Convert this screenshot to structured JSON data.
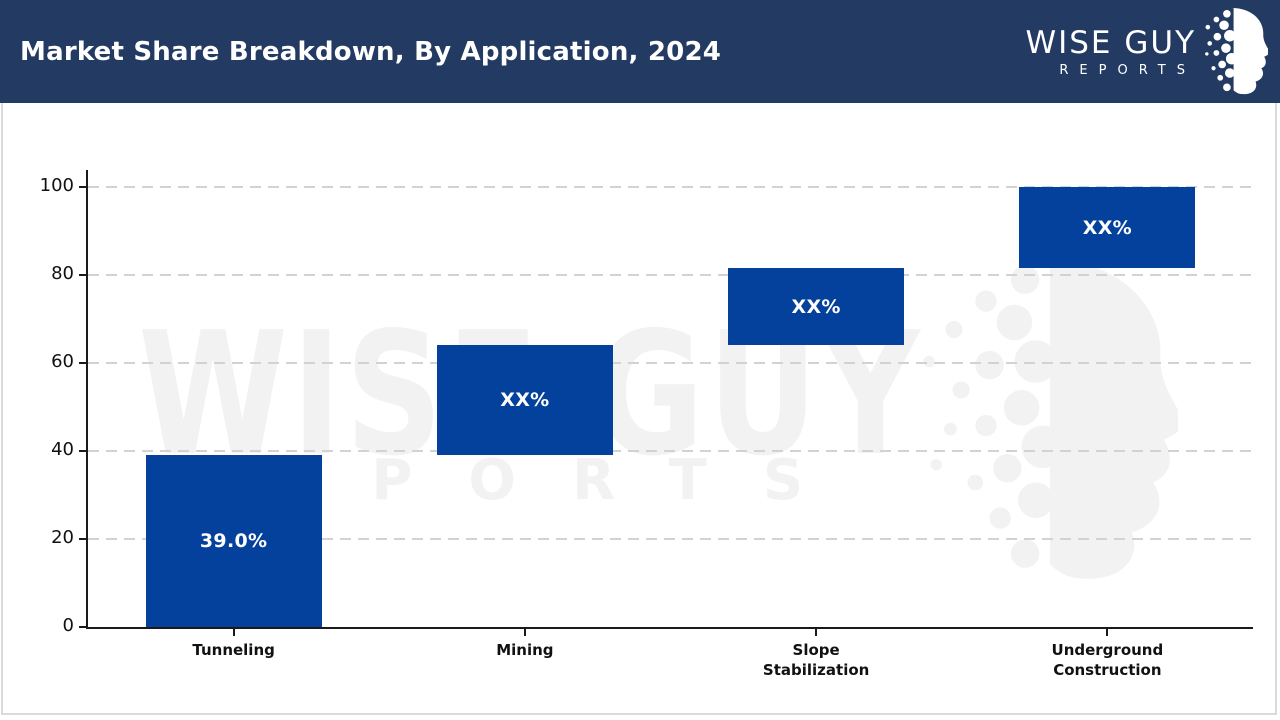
{
  "header": {
    "title": "Market Share Breakdown, By Application, 2024",
    "logo": {
      "brand_line1": "WISE GUY",
      "brand_line2": "REPORTS"
    },
    "bg_color": "#233A63"
  },
  "watermark": {
    "line1": "WISE GUY",
    "line2": "REPORTS"
  },
  "chart_data": {
    "type": "bar",
    "subtype": "floating-segment waterfall (stacked market-share breakdown)",
    "title": "Market Share Breakdown, By Application, 2024",
    "categories": [
      "Tunneling",
      "Mining",
      "Slope Stabilization",
      "Underground Construction"
    ],
    "category_label_lines": [
      [
        "Tunneling"
      ],
      [
        "Mining"
      ],
      [
        "Slope",
        "Stabilization"
      ],
      [
        "Underground",
        "Construction"
      ]
    ],
    "segments": [
      {
        "category": "Tunneling",
        "start": 0,
        "end": 39,
        "value": 39.0,
        "label": "39.0%"
      },
      {
        "category": "Mining",
        "start": 39,
        "end": 64,
        "value": 25.0,
        "label": "XX%"
      },
      {
        "category": "Slope Stabilization",
        "start": 64,
        "end": 81.5,
        "value": 17.5,
        "label": "XX%"
      },
      {
        "category": "Underground Construction",
        "start": 81.5,
        "end": 100,
        "value": 18.5,
        "label": "XX%"
      }
    ],
    "xlabel": "",
    "ylabel": "",
    "ylim": [
      0,
      104
    ],
    "yticks": [
      0,
      20,
      40,
      60,
      80,
      100
    ],
    "grid": "horizontal dashed gridlines at y ticks",
    "legend": "none",
    "bar_color": "#04419C",
    "bar_label_color": "#FFFFFF",
    "axis_color": "#1A1A1A",
    "gridline_color": "#D2D2D2",
    "figure_border_color": "#DBDBDB"
  }
}
